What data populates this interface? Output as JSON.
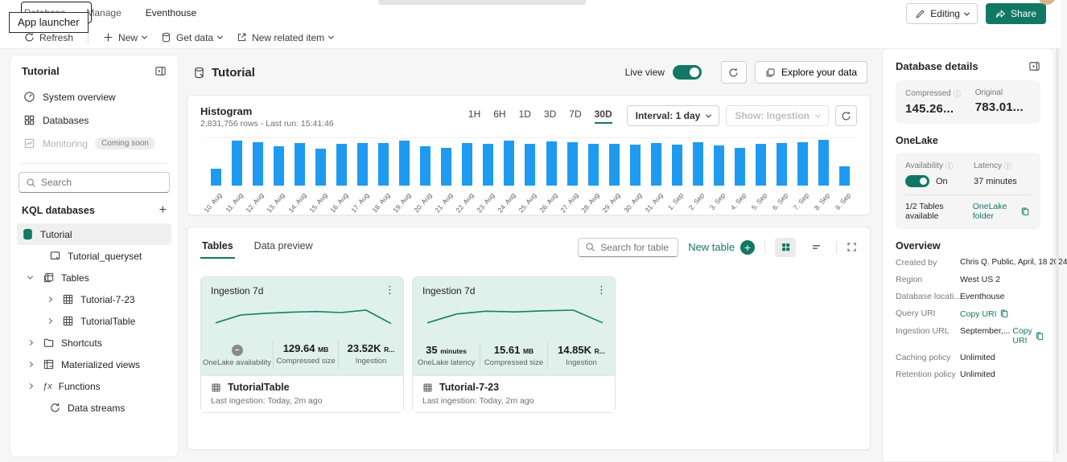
{
  "app": {
    "menu_tabs": [
      {
        "label": "Database"
      },
      {
        "label": "Manage"
      }
    ],
    "workspace_label": "Eventhouse",
    "tooltip": "App launcher",
    "editing_label": "Editing",
    "share_label": "Share"
  },
  "toolbar": {
    "refresh_label": "Refresh",
    "new_label": "New",
    "get_data_label": "Get data",
    "new_related_item_label": "New related item"
  },
  "sidebar": {
    "title": "Tutorial",
    "items": [
      {
        "label": "System overview"
      },
      {
        "label": "Databases"
      },
      {
        "label": "Monitoring",
        "badge": "Coming soon"
      }
    ],
    "search_placeholder": "Search",
    "section_title": "KQL databases",
    "tree": [
      {
        "label": "Tutorial"
      },
      {
        "label": "Tutorial_queryset"
      },
      {
        "label": "Tables"
      },
      {
        "label": "Tutorial-7-23"
      },
      {
        "label": "TutorialTable"
      },
      {
        "label": "Shortcuts"
      },
      {
        "label": "Materialized views"
      },
      {
        "label": "Functions"
      },
      {
        "label": "Data streams"
      }
    ]
  },
  "main": {
    "title": "Tutorial",
    "live_view_label": "Live view",
    "explore_label": "Explore your data",
    "histogram": {
      "title": "Histogram",
      "subtitle": "2,831,756 rows - Last run: 15:41:46",
      "ranges": [
        "1H",
        "6H",
        "1D",
        "3D",
        "7D",
        "30D"
      ],
      "active_range": "30D",
      "interval_label": "Interval: 1 day",
      "show_label": "Show: Ingestion"
    },
    "tables_section": {
      "tabs": [
        "Tables",
        "Data preview"
      ],
      "active_tab": "Tables",
      "search_placeholder": "Search for table",
      "new_table_label": "New table",
      "cards": [
        {
          "title": "Ingestion 7d",
          "stats": [
            {
              "value": "",
              "unit": "",
              "label": "OneLake availability"
            },
            {
              "value": "129.64",
              "unit": "MB",
              "label": "Compressed size"
            },
            {
              "value": "23.52K",
              "unit": "R...",
              "label": "Ingestion"
            }
          ],
          "table_name": "TutorialTable",
          "last_ingestion": "Last ingestion: Today, 2m ago"
        },
        {
          "title": "Ingestion 7d",
          "stats": [
            {
              "value": "35",
              "unit": "minutes",
              "label": "OneLake latency"
            },
            {
              "value": "15.61",
              "unit": "MB",
              "label": "Compressed size"
            },
            {
              "value": "14.85K",
              "unit": "R...",
              "label": "Ingestion"
            }
          ],
          "table_name": "Tutorial-7-23",
          "last_ingestion": "Last ingestion: Today, 2m ago"
        }
      ]
    }
  },
  "details": {
    "title": "Database details",
    "size": {
      "compressed_label": "Compressed",
      "compressed_value": "145.26...",
      "original_label": "Original",
      "original_value": "783.01..."
    },
    "onelake": {
      "title": "OneLake",
      "availability_label": "Availability",
      "availability_state": "On",
      "latency_label": "Latency",
      "latency_value": "37 minutes",
      "tables_available": "1/2 Tables available",
      "folder_link": "OneLake folder"
    },
    "overview": {
      "title": "Overview",
      "rows": [
        {
          "label": "Created by",
          "value": "Chris Q. Public, April, 18 2024"
        },
        {
          "label": "Region",
          "value": "West US 2"
        },
        {
          "label": "Database locati...",
          "value": "Eventhouse"
        },
        {
          "label": "Query URI",
          "value": "",
          "link": "Copy URI"
        },
        {
          "label": "Ingestion URL",
          "value": "September,...",
          "link": "Copy URI"
        },
        {
          "label": "Caching policy",
          "value": "Unlimited"
        },
        {
          "label": "Retention policy",
          "value": "Unlimited"
        }
      ]
    }
  },
  "chart_data": [
    {
      "type": "bar",
      "title": "Histogram",
      "categories": [
        "10. Aug",
        "11. Aug",
        "12. Aug",
        "13. Aug",
        "14. Aug",
        "15. Aug",
        "16. Aug",
        "17. Aug",
        "18. Aug",
        "19. Aug",
        "20. Aug",
        "21. Aug",
        "22. Aug",
        "23. Aug",
        "24. Aug",
        "25. Aug",
        "26. Aug",
        "27. Aug",
        "28. Aug",
        "29. Aug",
        "30. Aug",
        "31. Aug",
        "1. Sep",
        "2. Sep",
        "3. Sep",
        "4. Sep",
        "5. Sep",
        "6. Sep",
        "7. Sep",
        "8. Sep",
        "9. Sep"
      ],
      "values": [
        38,
        100,
        97,
        88,
        95,
        82,
        93,
        95,
        94,
        100,
        87,
        83,
        95,
        92,
        100,
        92,
        98,
        96,
        93,
        93,
        91,
        95,
        90,
        97,
        89,
        84,
        93,
        94,
        96,
        102,
        42
      ],
      "xlabel": "",
      "ylabel": "",
      "ylim": [
        0,
        105
      ],
      "grid": false,
      "color": "#1e9bf0"
    },
    {
      "type": "line",
      "title": "Ingestion 7d (TutorialTable)",
      "values": [
        0.3,
        0.52,
        0.57,
        0.6,
        0.62,
        0.59,
        0.66,
        0.28
      ],
      "color": "#12806b"
    },
    {
      "type": "line",
      "title": "Ingestion 7d (Tutorial-7-23)",
      "values": [
        0.3,
        0.55,
        0.63,
        0.61,
        0.64,
        0.66,
        0.3
      ],
      "color": "#12806b"
    }
  ]
}
